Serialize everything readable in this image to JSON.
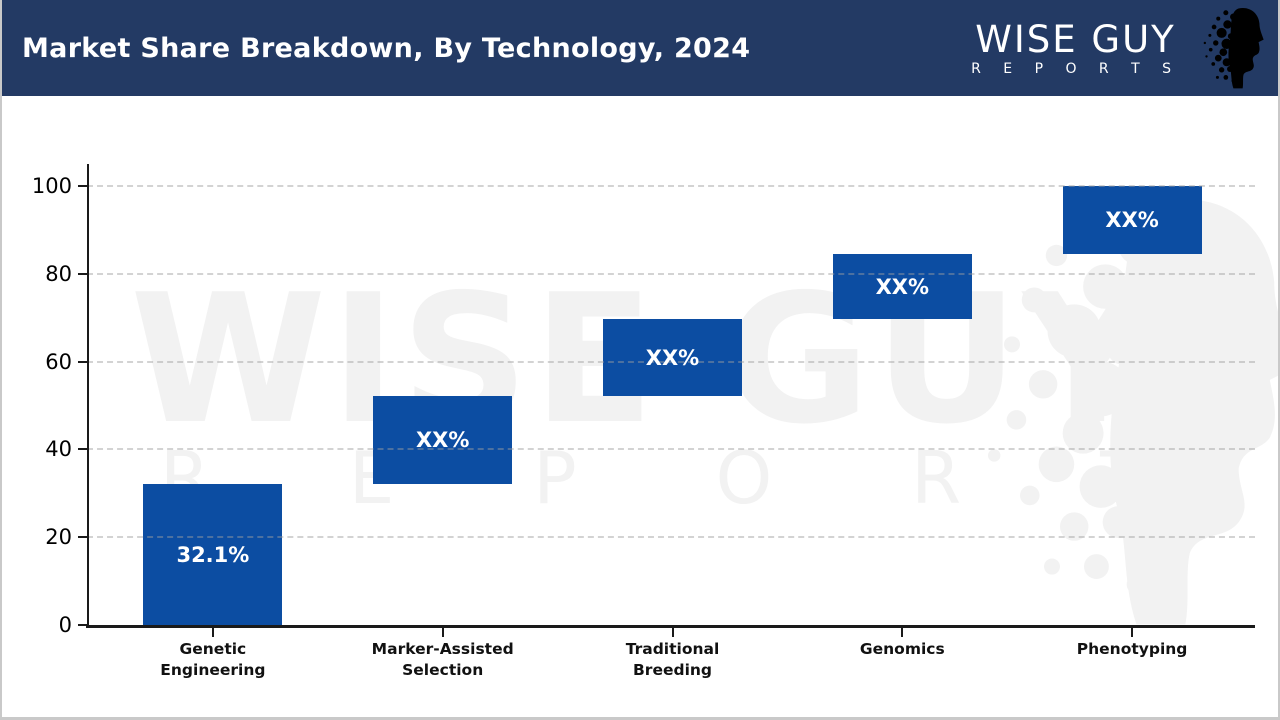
{
  "header": {
    "title": "Market Share Breakdown, By Technology, 2024",
    "brand_line1": "WISE GUY",
    "brand_line2": "R E P O R T S"
  },
  "watermark": {
    "line1": "WISE GUY",
    "line2": "R E P O R T S"
  },
  "colors": {
    "header_bg": "#233a64",
    "bar": "#0c4da2",
    "bar_label_text": "#ffffff",
    "axis": "#1a1a1a",
    "gridline": "#d9d9d9",
    "watermark": "#f2f2f2"
  },
  "chart_data": {
    "type": "bar",
    "variant": "waterfall-floating",
    "title": "Market Share Breakdown, By Technology, 2024",
    "xlabel": "",
    "ylabel": "",
    "ylim": [
      0,
      100
    ],
    "yticks": [
      0,
      20,
      40,
      60,
      80,
      100
    ],
    "grid": "horizontal-dashed",
    "legend": "none",
    "categories": [
      "Genetic Engineering",
      "Marker-Assisted Selection",
      "Traditional Breeding",
      "Genomics",
      "Phenotyping"
    ],
    "segments": [
      {
        "category": "Genetic Engineering",
        "start": 0,
        "end": 32.1,
        "value": 32.1,
        "label": "32.1%"
      },
      {
        "category": "Marker-Assisted Selection",
        "start": 32.1,
        "end": 52.1,
        "value": 20.0,
        "label": "XX%"
      },
      {
        "category": "Traditional Breeding",
        "start": 52.1,
        "end": 69.6,
        "value": 17.5,
        "label": "XX%"
      },
      {
        "category": "Genomics",
        "start": 69.6,
        "end": 84.6,
        "value": 15.0,
        "label": "XX%"
      },
      {
        "category": "Phenotyping",
        "start": 84.6,
        "end": 100,
        "value": 15.4,
        "label": "XX%"
      }
    ]
  }
}
